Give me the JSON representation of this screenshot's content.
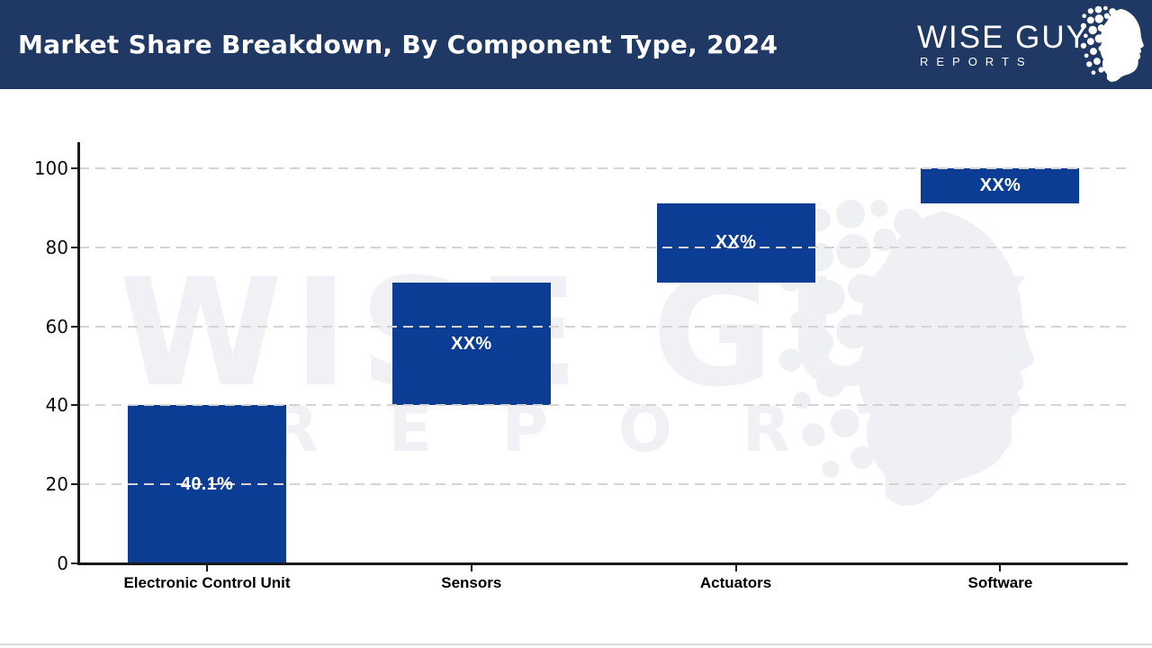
{
  "header": {
    "title": "Market Share Breakdown, By Component Type, 2024",
    "logo": {
      "wordmark": "WISE GUY",
      "subtitle": "REPORTS"
    }
  },
  "watermark": {
    "line1": "WISE GUY",
    "line2": "REPORTS"
  },
  "chart_data": {
    "type": "bar",
    "subtype": "waterfall",
    "title": "Market Share Breakdown, By Component Type, 2024",
    "categories": [
      "Electronic Control Unit",
      "Sensors",
      "Actuators",
      "Software"
    ],
    "segments": [
      {
        "category": "Electronic Control Unit",
        "start": 0,
        "end": 40.1,
        "value_label": "40.1%"
      },
      {
        "category": "Sensors",
        "start": 40.1,
        "end": 71.1,
        "value_label": "XX%"
      },
      {
        "category": "Actuators",
        "start": 71.1,
        "end": 91.2,
        "value_label": "XX%"
      },
      {
        "category": "Software",
        "start": 91.2,
        "end": 100,
        "value_label": "XX%"
      }
    ],
    "yticks": [
      0,
      20,
      40,
      60,
      80,
      100
    ],
    "ylim": [
      0,
      106
    ],
    "xlabel": "",
    "ylabel": "",
    "grid": "horizontal-dashed",
    "legend": "none",
    "colors": {
      "bar": "#0c3d94",
      "gridline": "#d4d4d4",
      "axis": "#1a1a1a",
      "value_label": "#ffffff"
    }
  },
  "colors": {
    "header_bg": "#1f3864",
    "page_bg": "#ffffff",
    "watermark": "#f1f1f5",
    "title_text": "#ffffff"
  }
}
